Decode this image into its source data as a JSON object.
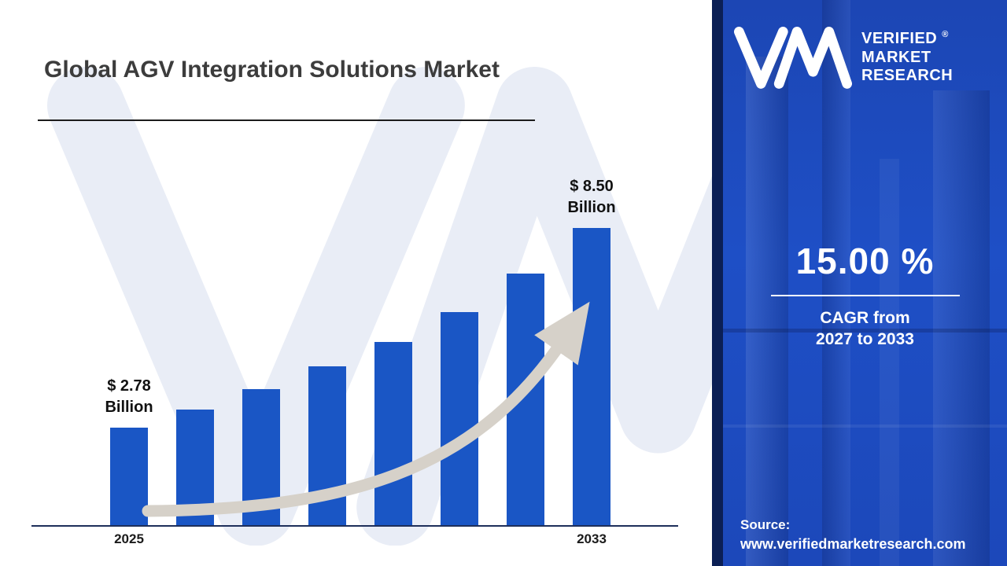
{
  "colors": {
    "bar": "#1a56c5",
    "arrow": "#d6d1c9",
    "panel_bg": "#1d4cc0",
    "watermark": "#e9edf6",
    "axis": "#1e2f5a"
  },
  "header": {
    "title": "Global AGV Integration Solutions Market"
  },
  "chart_data": {
    "type": "bar",
    "title": "Global AGV Integration Solutions Market",
    "unit": "USD Billion",
    "x_tick_labels": [
      "2025",
      "2033"
    ],
    "values": [
      2.78,
      3.3,
      3.9,
      4.55,
      5.25,
      6.1,
      7.2,
      8.5
    ],
    "ylim": [
      0,
      9
    ],
    "grid": false,
    "legend": "none",
    "trend_arrow": true,
    "annotations": {
      "first": {
        "value_line": "$ 2.78",
        "unit_line": "Billion"
      },
      "last": {
        "value_line": "$ 8.50",
        "unit_line": "Billion"
      }
    }
  },
  "panel": {
    "logo": {
      "monogram": "VM",
      "lines": [
        "VERIFIED",
        "MARKET",
        "RESEARCH"
      ],
      "registered_mark": "®"
    },
    "cagr": {
      "value": "15.00 %",
      "label_line1": "CAGR from",
      "label_line2": "2027 to 2033"
    },
    "source": {
      "label": "Source:",
      "url": "www.verifiedmarketresearch.com"
    }
  }
}
